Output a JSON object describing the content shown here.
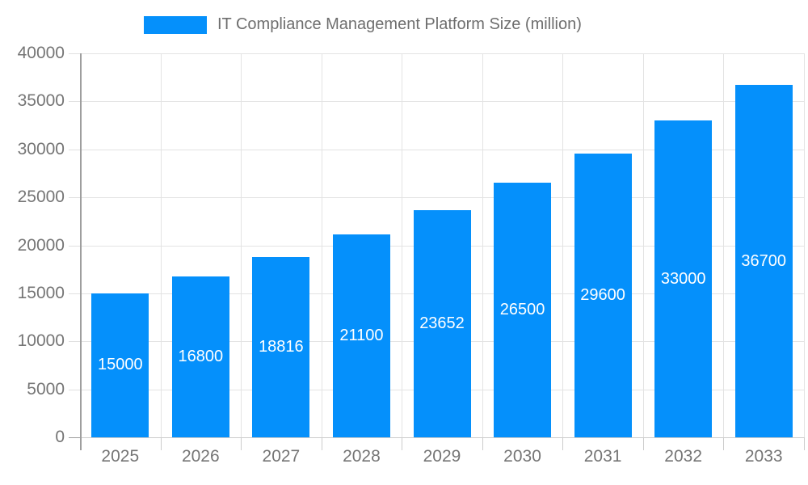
{
  "legend": {
    "label": "IT Compliance Management Platform Size (million)"
  },
  "chart_data": {
    "type": "bar",
    "title": "IT Compliance Management Platform Size (million)",
    "categories": [
      "2025",
      "2026",
      "2027",
      "2028",
      "2029",
      "2030",
      "2031",
      "2032",
      "2033"
    ],
    "values": [
      15000,
      16800,
      18816,
      21100,
      23652,
      26500,
      29600,
      33000,
      36700
    ],
    "value_labels": [
      "15000",
      "16800",
      "18816",
      "21100",
      "23652",
      "26500",
      "29600",
      "33000",
      "36700"
    ],
    "xlabel": "",
    "ylabel": "",
    "ylim": [
      0,
      40000
    ],
    "yticks": [
      0,
      5000,
      10000,
      15000,
      20000,
      25000,
      30000,
      35000,
      40000
    ],
    "grid": true,
    "legend_position": "top",
    "colors": {
      "bar": "#0590fb",
      "value_label": "#ffffff",
      "axis_text": "#757575",
      "legend_text": "#6e6e6e",
      "gridline": "#e3e3e3",
      "axis_line": "#9e9e9e",
      "baseline": "#cccccc"
    }
  }
}
